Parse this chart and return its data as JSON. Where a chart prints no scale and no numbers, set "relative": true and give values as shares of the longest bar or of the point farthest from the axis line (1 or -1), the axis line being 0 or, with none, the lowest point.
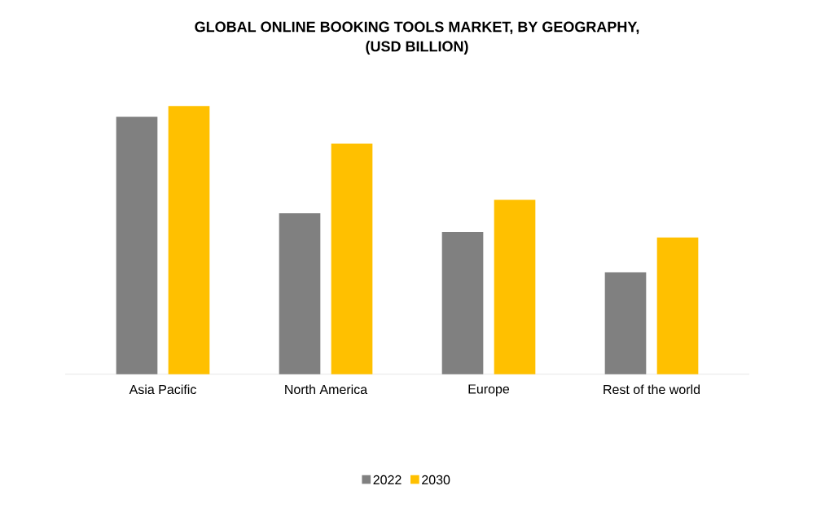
{
  "chart_data": {
    "type": "bar",
    "title": "GLOBAL ONLINE BOOKING TOOLS MARKET, BY GEOGRAPHY, (USD BILLION)",
    "categories": [
      "Asia Pacific",
      "North America",
      "Europe",
      "Rest of the world"
    ],
    "series": [
      {
        "name": "2022",
        "color": "#808080",
        "values": [
          0.96,
          0.6,
          0.53,
          0.38
        ]
      },
      {
        "name": "2030",
        "color": "#ffc000",
        "values": [
          1.0,
          0.86,
          0.65,
          0.51
        ]
      }
    ],
    "relative": true,
    "legend": "bottom"
  }
}
